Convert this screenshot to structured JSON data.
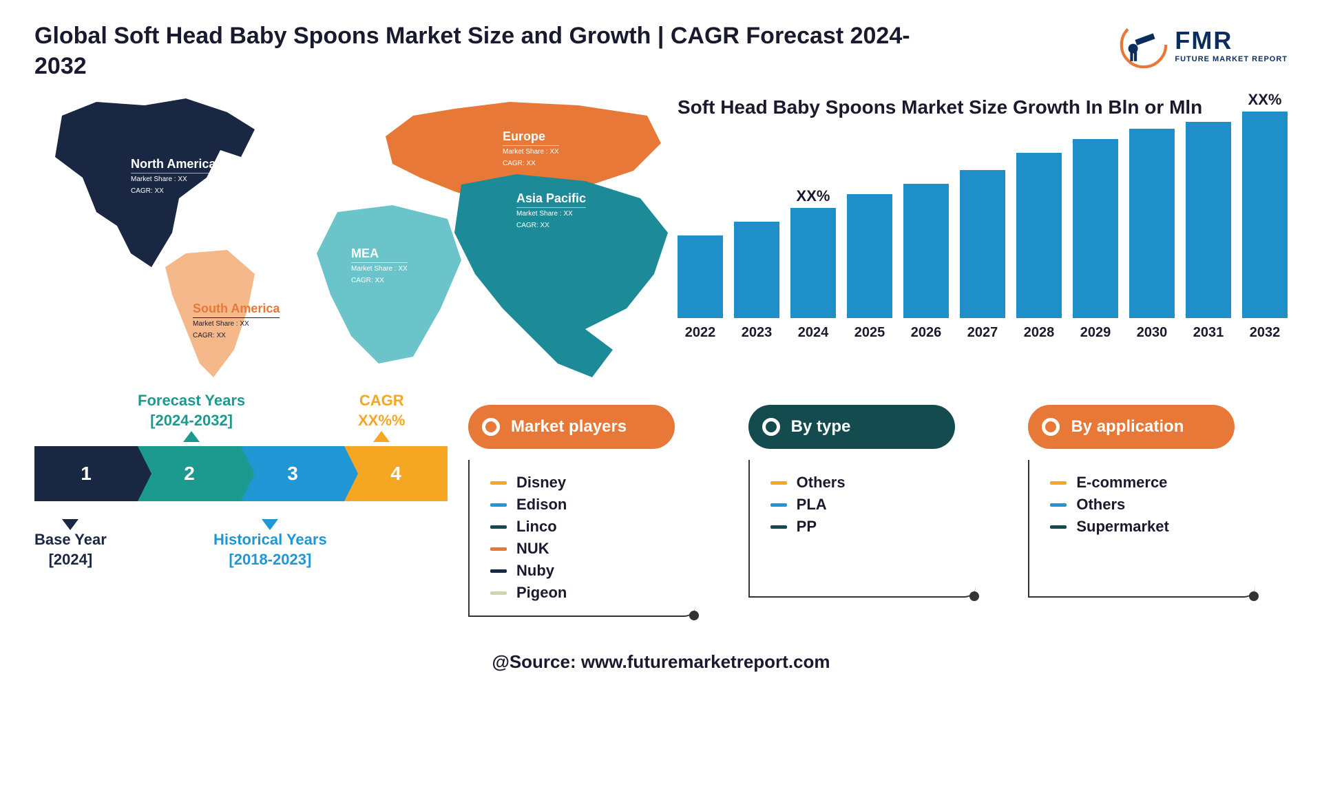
{
  "title": "Global Soft Head Baby Spoons Market Size and Growth | CAGR Forecast 2024-2032",
  "logo": {
    "brand": "FMR",
    "subtitle": "FUTURE MARKET REPORT"
  },
  "colors": {
    "navy": "#1a2743",
    "teal_region": "#1d8b97",
    "light_teal": "#6bc4c9",
    "orange_region": "#e87838",
    "peach": "#f4b88a",
    "bar": "#1f8fc9",
    "pill_orange": "#e87838",
    "pill_teal": "#144b4f",
    "seg1": "#1a2743",
    "seg2": "#1d9a8f",
    "seg3": "#2196d4",
    "seg4": "#f5a623"
  },
  "map": {
    "regions": [
      {
        "name": "North America",
        "share": "Market Share : XX",
        "cagr": "CAGR: XX"
      },
      {
        "name": "South America",
        "share": "Market Share : XX",
        "cagr": "CAGR: XX"
      },
      {
        "name": "Europe",
        "share": "Market Share : XX",
        "cagr": "CAGR: XX"
      },
      {
        "name": "Asia Pacific",
        "share": "Market Share : XX",
        "cagr": "CAGR: XX"
      },
      {
        "name": "MEA",
        "share": "Market Share : XX",
        "cagr": "CAGR: XX"
      }
    ]
  },
  "chart": {
    "title": "Soft Head Baby Spoons Market Size Growth In Bln or Mln",
    "type": "bar",
    "years": [
      "2022",
      "2023",
      "2024",
      "2025",
      "2026",
      "2027",
      "2028",
      "2029",
      "2030",
      "2031",
      "2032"
    ],
    "values": [
      120,
      140,
      160,
      180,
      195,
      215,
      240,
      260,
      275,
      285,
      300
    ],
    "value_max": 300,
    "annotations": [
      {
        "index": 2,
        "text": "XX%"
      },
      {
        "index": 10,
        "text": "XX%"
      }
    ],
    "bar_color": "#1f8fc9"
  },
  "timeline": {
    "segments": [
      "1",
      "2",
      "3",
      "4"
    ],
    "labels": {
      "base": {
        "title": "Base Year",
        "range": "[2024]",
        "color": "#1a2743"
      },
      "forecast": {
        "title": "Forecast Years",
        "range": "[2024-2032]",
        "color": "#1d9a8f"
      },
      "historical": {
        "title": "Historical Years",
        "range": "[2018-2023]",
        "color": "#2196d4"
      },
      "cagr": {
        "title": "CAGR",
        "range": "XX%%",
        "color": "#f5a623"
      }
    }
  },
  "pills": {
    "players": {
      "title": "Market players",
      "items": [
        {
          "label": "Disney",
          "color": "#f5a623"
        },
        {
          "label": "Edison",
          "color": "#2196d4"
        },
        {
          "label": "Linco",
          "color": "#144b4f"
        },
        {
          "label": "NUK",
          "color": "#e87838"
        },
        {
          "label": "Nuby",
          "color": "#1a2743"
        },
        {
          "label": "Pigeon",
          "color": "#cfd6b0"
        }
      ]
    },
    "type": {
      "title": "By type",
      "items": [
        {
          "label": "Others",
          "color": "#f5a623"
        },
        {
          "label": "PLA",
          "color": "#2196d4"
        },
        {
          "label": "PP",
          "color": "#144b4f"
        }
      ]
    },
    "application": {
      "title": "By application",
      "items": [
        {
          "label": "E-commerce",
          "color": "#f5a623"
        },
        {
          "label": "Others",
          "color": "#2196d4"
        },
        {
          "label": "Supermarket",
          "color": "#144b4f"
        }
      ]
    }
  },
  "footer": "@Source: www.futuremarketreport.com"
}
